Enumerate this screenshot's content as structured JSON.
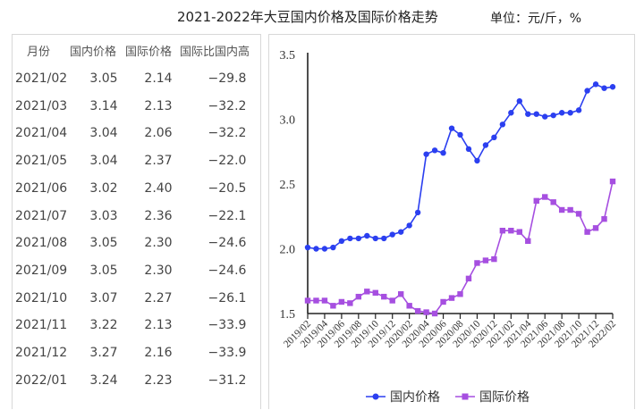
{
  "header": {
    "title": "2021-2022年大豆国内价格及国际价格走势",
    "unit": "单位：元/斤，%"
  },
  "table": {
    "columns": [
      "月份",
      "国内价格",
      "国际价格",
      "国际比国内高"
    ],
    "rows": [
      [
        "2021/02",
        "3.05",
        "2.14",
        "−29.8"
      ],
      [
        "2021/03",
        "3.14",
        "2.13",
        "−32.2"
      ],
      [
        "2021/04",
        "3.04",
        "2.06",
        "−32.2"
      ],
      [
        "2021/05",
        "3.04",
        "2.37",
        "−22.0"
      ],
      [
        "2021/06",
        "3.02",
        "2.40",
        "−20.5"
      ],
      [
        "2021/07",
        "3.03",
        "2.36",
        "−22.1"
      ],
      [
        "2021/08",
        "3.05",
        "2.30",
        "−24.6"
      ],
      [
        "2021/09",
        "3.05",
        "2.30",
        "−24.6"
      ],
      [
        "2021/10",
        "3.07",
        "2.27",
        "−26.1"
      ],
      [
        "2021/11",
        "3.22",
        "2.13",
        "−33.9"
      ],
      [
        "2021/12",
        "3.27",
        "2.16",
        "−33.9"
      ],
      [
        "2022/01",
        "3.24",
        "2.23",
        "−31.2"
      ]
    ]
  },
  "colors": {
    "domestic": "#2b3ff0",
    "international": "#a64fe0",
    "axis": "#222222",
    "border": "#d8d8d8"
  },
  "chart_data": {
    "type": "line",
    "title": "2021-2022年大豆国内价格及国际价格走势",
    "xlabel": "",
    "ylabel": "元/斤",
    "ylim": [
      1.5,
      3.5
    ],
    "yticks": [
      "1.5",
      "2.0",
      "2.5",
      "3.0",
      "3.5"
    ],
    "grid": false,
    "legend_position": "bottom",
    "x": [
      "2019/02",
      "2019/03",
      "2019/04",
      "2019/05",
      "2019/06",
      "2019/07",
      "2019/08",
      "2019/09",
      "2019/10",
      "2019/11",
      "2019/12",
      "2020/01",
      "2020/02",
      "2020/03",
      "2020/04",
      "2020/05",
      "2020/06",
      "2020/07",
      "2020/08",
      "2020/09",
      "2020/10",
      "2020/11",
      "2020/12",
      "2021/01",
      "2021/02",
      "2021/03",
      "2021/04",
      "2021/05",
      "2021/06",
      "2021/07",
      "2021/08",
      "2021/09",
      "2021/10",
      "2021/11",
      "2021/12",
      "2022/01",
      "2022/02"
    ],
    "xtick_labels": [
      "2019/02",
      "2019/04",
      "2019/06",
      "2019/08",
      "2019/10",
      "2019/12",
      "2020/02",
      "2020/04",
      "2020/06",
      "2020/08",
      "2020/10",
      "2020/12",
      "2021/02",
      "2021/04",
      "2021/06",
      "2021/08",
      "2021/10",
      "2021/12",
      "2022/02"
    ],
    "series": [
      {
        "name": "国内价格",
        "marker": "circle",
        "values": [
          2.01,
          2.0,
          2.0,
          2.01,
          2.06,
          2.08,
          2.08,
          2.1,
          2.08,
          2.08,
          2.11,
          2.13,
          2.18,
          2.28,
          2.73,
          2.76,
          2.74,
          2.93,
          2.88,
          2.77,
          2.68,
          2.8,
          2.86,
          2.96,
          3.05,
          3.14,
          3.04,
          3.04,
          3.02,
          3.03,
          3.05,
          3.05,
          3.07,
          3.22,
          3.27,
          3.24,
          3.25
        ]
      },
      {
        "name": "国际价格",
        "marker": "square",
        "values": [
          1.6,
          1.6,
          1.6,
          1.56,
          1.59,
          1.58,
          1.63,
          1.67,
          1.66,
          1.63,
          1.6,
          1.65,
          1.56,
          1.52,
          1.51,
          1.5,
          1.59,
          1.62,
          1.65,
          1.77,
          1.89,
          1.91,
          1.92,
          2.14,
          2.14,
          2.13,
          2.06,
          2.37,
          2.4,
          2.36,
          2.3,
          2.3,
          2.27,
          2.13,
          2.16,
          2.23,
          2.52
        ]
      }
    ]
  }
}
